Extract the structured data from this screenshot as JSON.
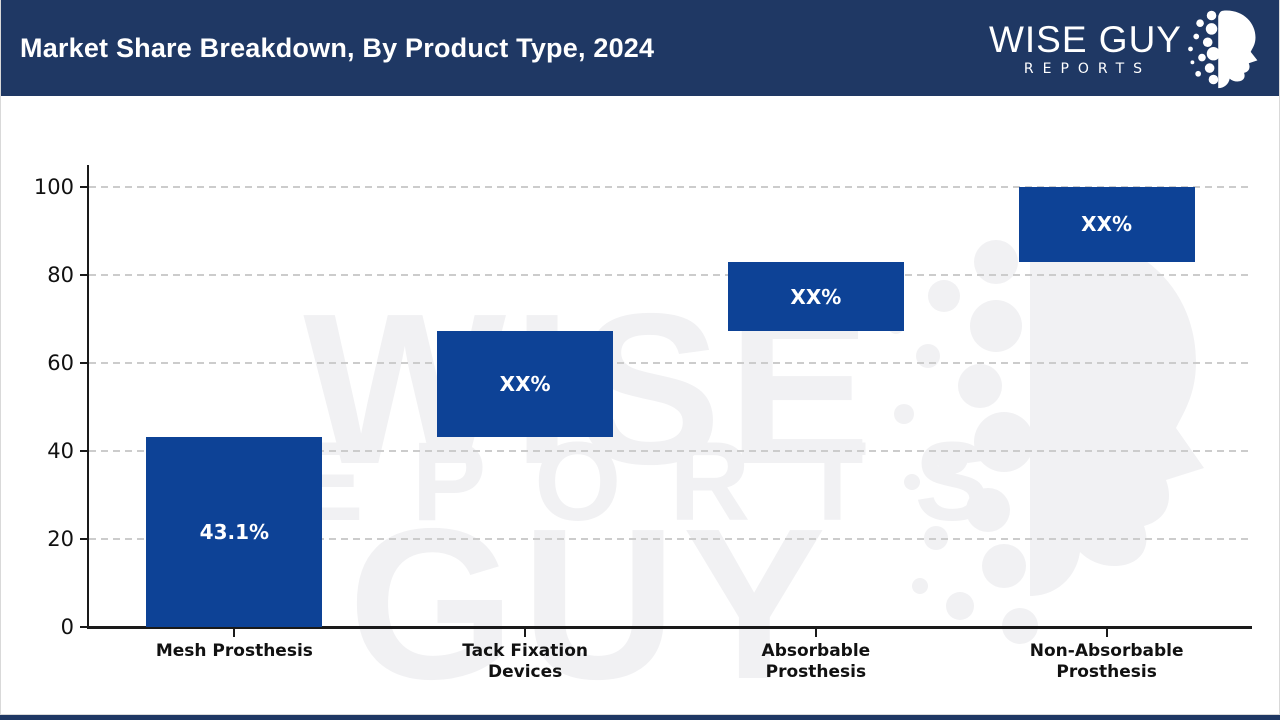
{
  "header": {
    "title": "Market Share Breakdown, By Product Type, 2024",
    "bg_color": "#1f3864",
    "brand": {
      "line1": "WISE GUY",
      "line2": "REPORTS"
    }
  },
  "watermark": {
    "line1": "WISE GUY",
    "line2": "REPORTS"
  },
  "footer": {
    "bar_color": "#1f3864"
  },
  "chart_data": {
    "type": "bar",
    "subtype": "waterfall (floating cumulative bars)",
    "title": "Market Share Breakdown, By Product Type, 2024",
    "categories": [
      "Mesh Prosthesis",
      "Tack Fixation\nDevices",
      "Absorbable\nProsthesis",
      "Non-Absorbable\nProsthesis"
    ],
    "segments": [
      {
        "label": "43.1%",
        "start": 0,
        "end": 43.1
      },
      {
        "label": "XX%",
        "start": 43.1,
        "end": 67.2
      },
      {
        "label": "XX%",
        "start": 67.2,
        "end": 83.0
      },
      {
        "label": "XX%",
        "start": 83.0,
        "end": 100.0
      }
    ],
    "values": [
      43.1,
      24.1,
      15.8,
      17.0
    ],
    "unit": "%",
    "xlabel": "",
    "ylabel": "",
    "yticks": [
      0,
      20,
      40,
      60,
      80,
      100
    ],
    "ylim": [
      0,
      100
    ],
    "grid": "horizontal dashed",
    "grid_color": "#cccccc",
    "bar_color": "#0d4296",
    "bar_label_color": "#ffffff",
    "axis_color": "#1a1a1a",
    "legend": "none"
  }
}
